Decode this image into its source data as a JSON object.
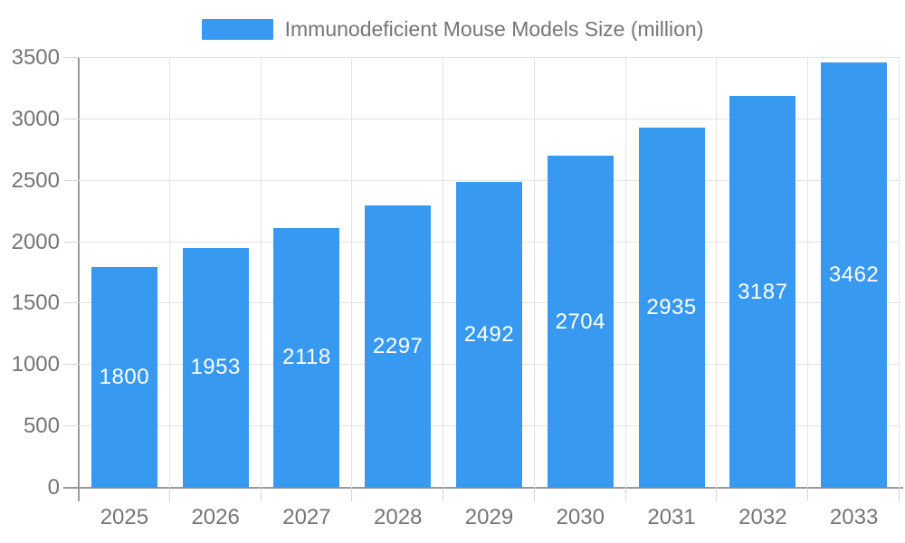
{
  "chart_data": {
    "type": "bar",
    "title": "Immunodeficient Mouse Models Size (million)",
    "legend": {
      "position": "top",
      "entries": [
        "Immunodeficient Mouse Models Size (million)"
      ]
    },
    "categories": [
      "2025",
      "2026",
      "2027",
      "2028",
      "2029",
      "2030",
      "2031",
      "2032",
      "2033"
    ],
    "series": [
      {
        "name": "Immunodeficient Mouse Models Size (million)",
        "values": [
          1800,
          1953,
          2118,
          2297,
          2492,
          2704,
          2935,
          3187,
          3462
        ]
      }
    ],
    "bar_value_labels": [
      "1800",
      "1953",
      "2118",
      "2297",
      "2492",
      "2704",
      "2935",
      "3187",
      "3462"
    ],
    "xlabel": "",
    "ylabel": "",
    "ylim": [
      0,
      3500
    ],
    "yticks": [
      0,
      500,
      1000,
      1500,
      2000,
      2500,
      3000,
      3500
    ],
    "grid": true,
    "colors": {
      "bar": "#3899f0",
      "bar_label_text": "#ffffff",
      "axis_text": "#757575",
      "legend_text": "#757575",
      "grid_line": "#e3e3e3",
      "tick_line": "#d6d6d6",
      "axis_line": "#9a9a9a",
      "background": "#ffffff"
    }
  }
}
